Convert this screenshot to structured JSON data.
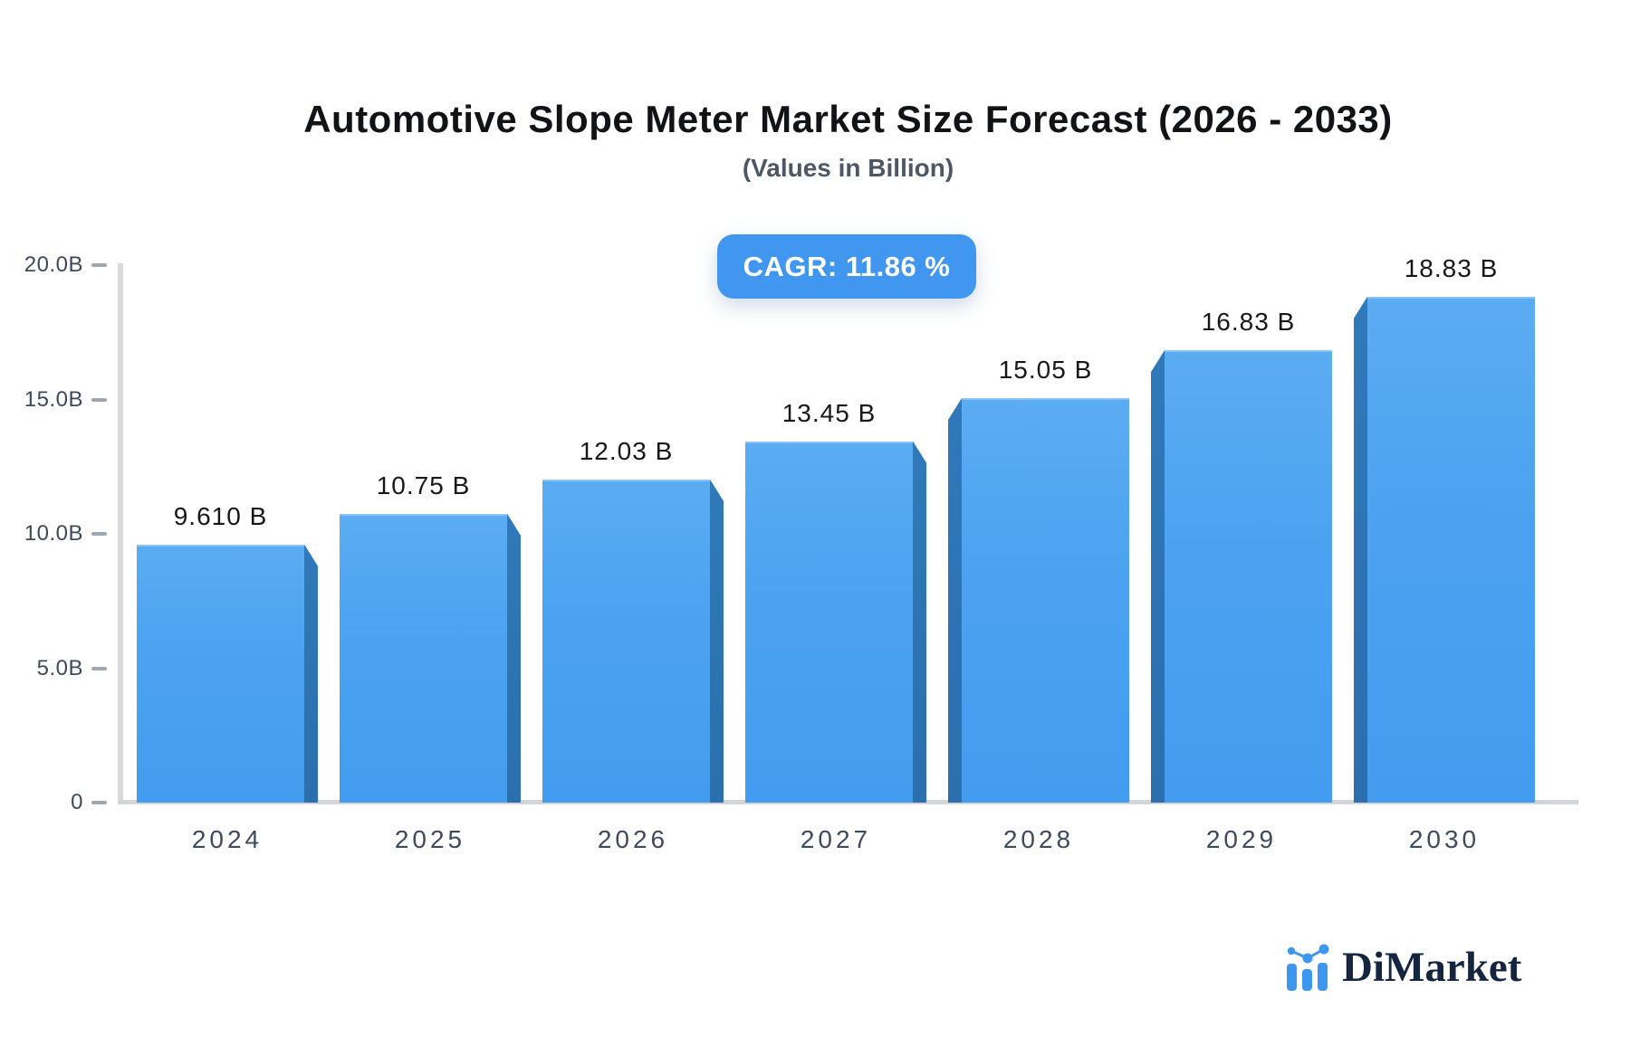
{
  "title": "Automotive Slope Meter Market Size Forecast (2026 - 2033)",
  "subtitle": "(Values in Billion)",
  "badge": {
    "label": "CAGR: 11.86 %"
  },
  "brand": {
    "name": "DiMarket",
    "icon": "bar-chart-logo-icon"
  },
  "colors": {
    "accent_blue": "#4196ef",
    "bar_face_top": "#5bacf2",
    "bar_face_bottom": "#449cf0",
    "bar_side_shade": "#2d73b4",
    "axis_gray": "#d5d8dc",
    "tick_gray": "#9fa6b0",
    "label_slate": "#3e4a5a",
    "title_black": "#121316",
    "logo_navy": "#152540"
  },
  "chart_data": {
    "type": "bar",
    "title": "Automotive Slope Meter Market Size Forecast (2026 - 2033)",
    "subtitle": "(Values in Billion)",
    "xlabel": "",
    "ylabel": "",
    "categories": [
      "2024",
      "2025",
      "2026",
      "2027",
      "2028",
      "2029",
      "2030"
    ],
    "values": [
      9.61,
      10.75,
      12.03,
      13.45,
      15.05,
      16.83,
      18.83
    ],
    "value_labels": [
      "9.610 B",
      "10.75 B",
      "12.03 B",
      "13.45 B",
      "15.05 B",
      "16.83 B",
      "18.83 B"
    ],
    "y_ticks": [
      {
        "label": "0",
        "value": 0
      },
      {
        "label": "5.0B",
        "value": 5
      },
      {
        "label": "10.0B",
        "value": 10
      },
      {
        "label": "15.0B",
        "value": 15
      },
      {
        "label": "20.0B",
        "value": 20
      }
    ],
    "ylim": [
      0,
      20
    ],
    "grid": "off",
    "legend": "none",
    "annotation": "CAGR: 11.86 %"
  }
}
